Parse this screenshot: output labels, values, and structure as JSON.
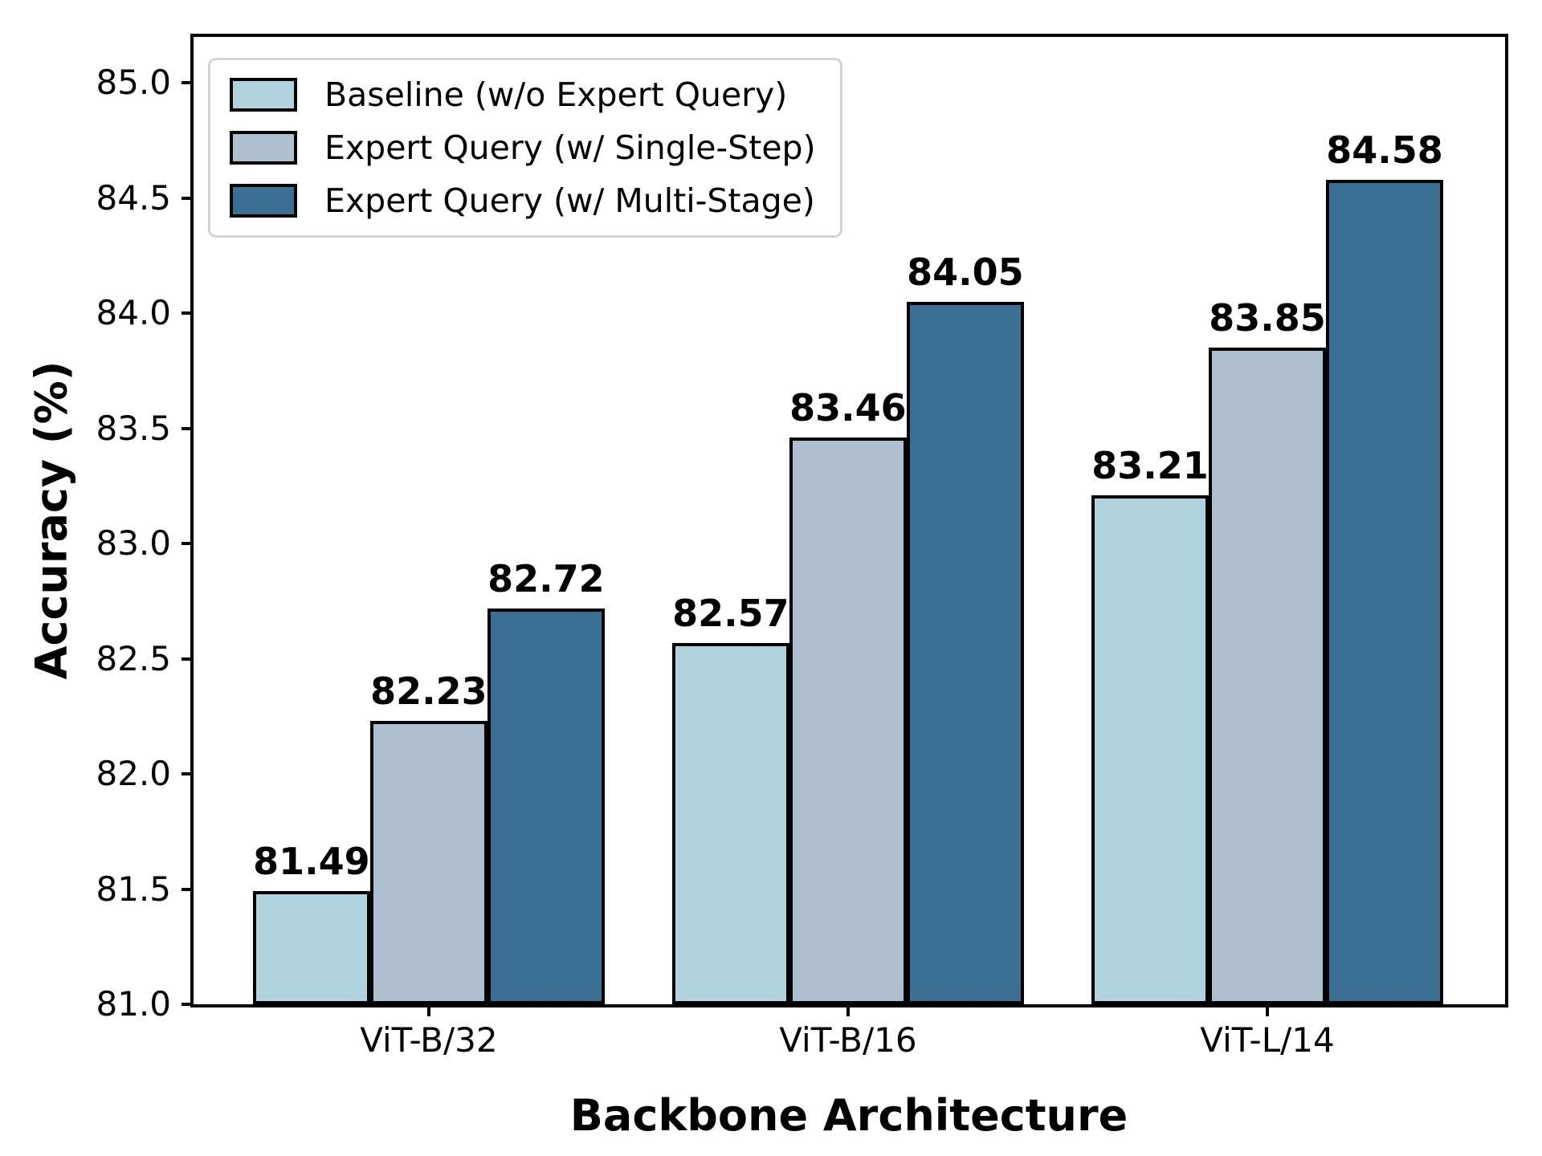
{
  "chart_data": {
    "type": "bar",
    "title": "",
    "xlabel": "Backbone Architecture",
    "ylabel": "Accuracy (%)",
    "categories": [
      "ViT-B/32",
      "ViT-B/16",
      "ViT-L/14"
    ],
    "series": [
      {
        "name": "Baseline (w/o Expert Query)",
        "color": "#b1d3dd",
        "values": [
          81.49,
          82.57,
          83.21
        ]
      },
      {
        "name": "Expert Query (w/ Single-Step)",
        "color": "#aebfcf",
        "values": [
          82.23,
          83.46,
          83.85
        ]
      },
      {
        "name": "Expert Query (w/ Multi-Stage)",
        "color": "#3c6f94",
        "values": [
          82.72,
          84.05,
          84.58
        ]
      }
    ],
    "bar_edge_color": "#000000",
    "value_labels": [
      [
        "81.49",
        "82.57",
        "83.21"
      ],
      [
        "82.23",
        "83.46",
        "83.85"
      ],
      [
        "82.72",
        "84.05",
        "84.58"
      ]
    ],
    "ylim": [
      81.0,
      85.2
    ],
    "yticks": [
      "81.0",
      "81.5",
      "82.0",
      "82.5",
      "83.0",
      "83.5",
      "84.0",
      "84.5",
      "85.0"
    ],
    "grid": false,
    "legend_position": "upper-left"
  }
}
